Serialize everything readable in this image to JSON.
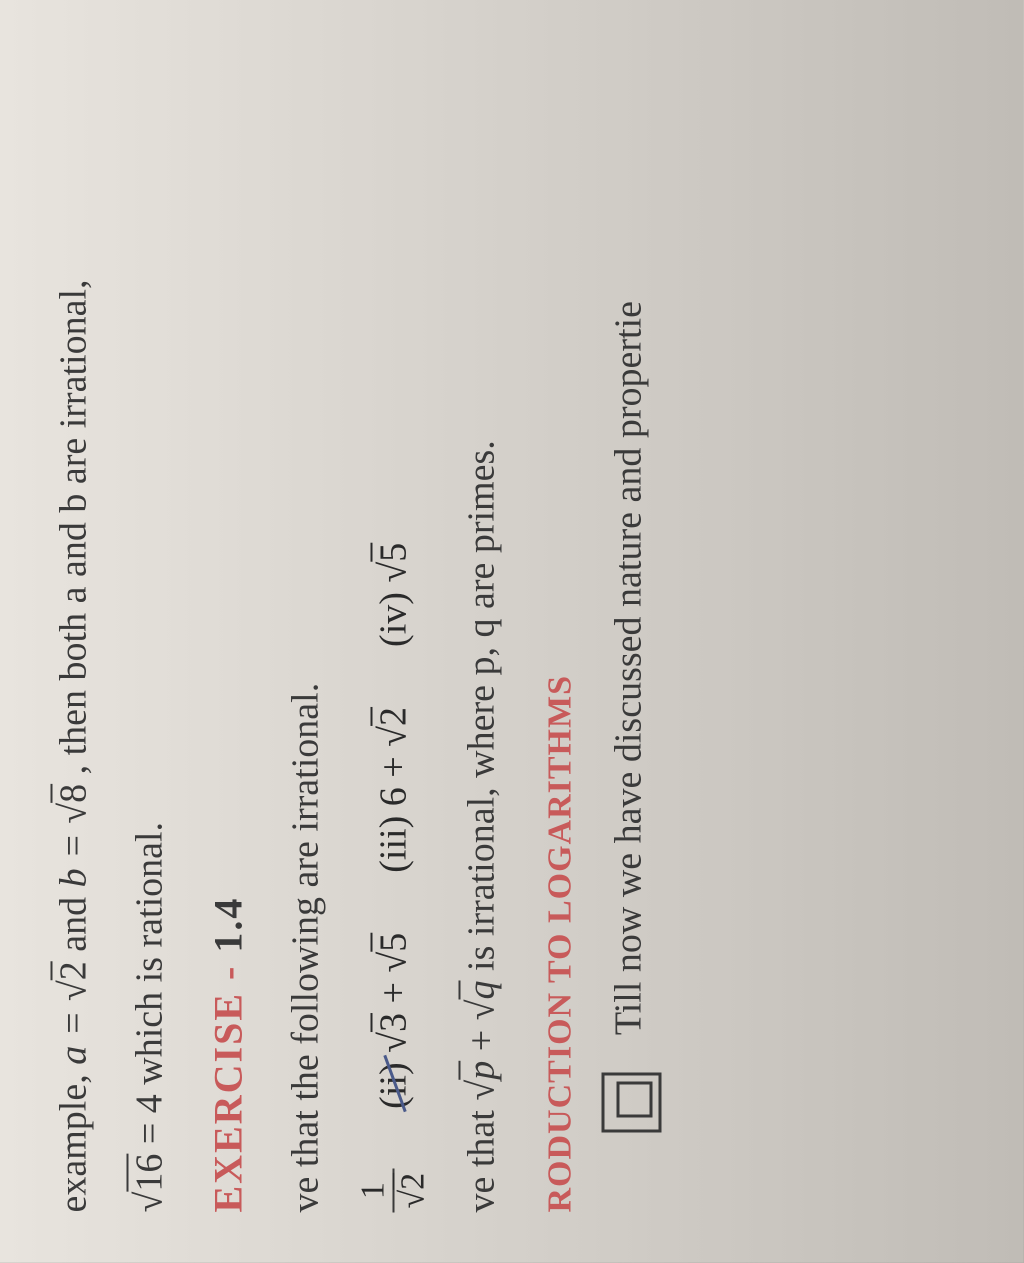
{
  "example_line": {
    "prefix": "example, ",
    "a_eq": "a = ",
    "sqrt2": "2",
    "and": " and ",
    "b_eq": "b = ",
    "sqrt8": "8",
    "suffix": ", then both a and b are irrational,"
  },
  "sqrt16_line": {
    "sqrt16": "16",
    "eq": " = 4 which is rational."
  },
  "exercise": {
    "label": "EXERCISE - ",
    "number": "1.4"
  },
  "prove_line": "ve that the following are irrational.",
  "items": {
    "frac_num": "1",
    "frac_den": "2",
    "ii_label": "(ii) ",
    "ii_sqrt3": "3",
    "ii_plus": " + ",
    "ii_sqrt5": "5",
    "iii_label": "(iii) ",
    "iii_6plus": "6 + ",
    "iii_sqrt2": "2",
    "iv_label": "(iv) ",
    "iv_sqrt5": "5"
  },
  "prove_pq": {
    "prefix": "ve that ",
    "sqrtp": "p",
    "plus": " + ",
    "sqrtq": "q",
    "suffix": " is irrational, where p, q are primes."
  },
  "section": "RODUCTION TO LOGARITHMS",
  "till_now": "Till now we have discussed nature and propertie"
}
